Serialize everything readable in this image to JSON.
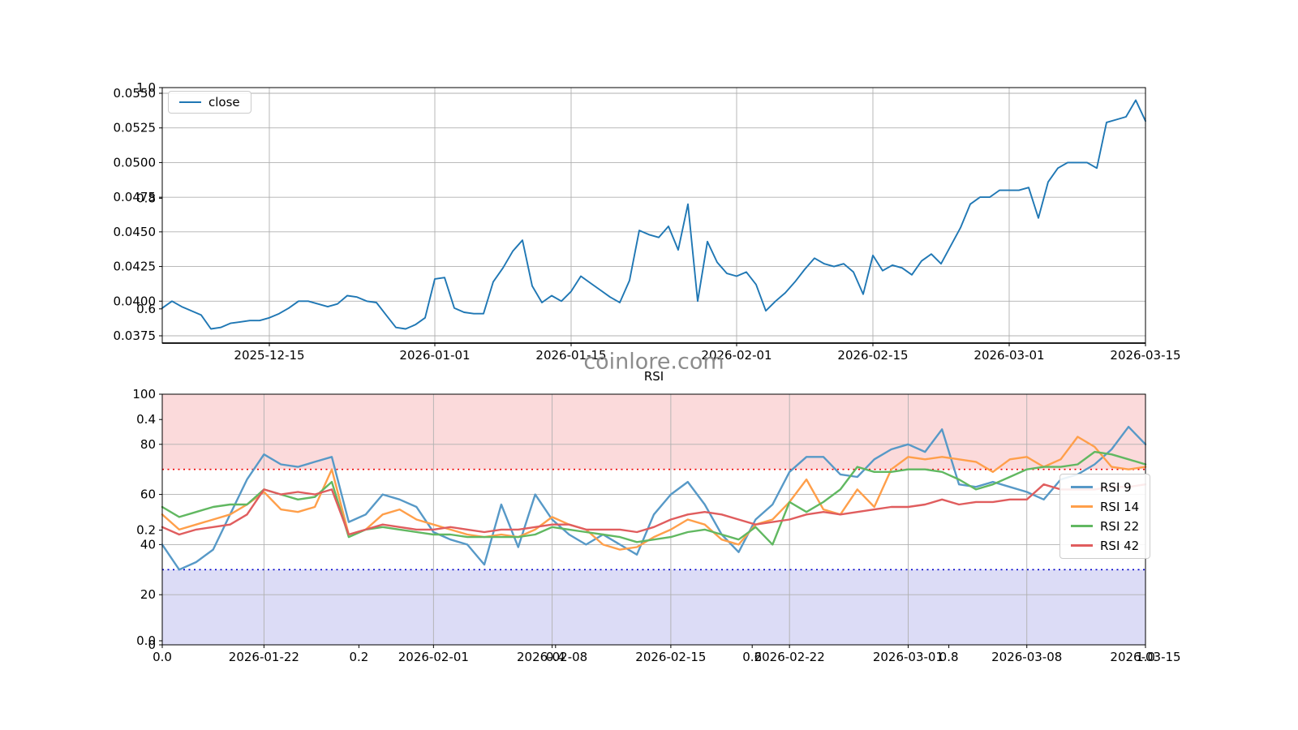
{
  "watermark": {
    "text": "coinlore.com",
    "color": "#8c8c8c"
  },
  "overlay_axis_artifact": {
    "left_tick_labels": [
      "1.0",
      "0.8",
      "0.6",
      "0.4",
      "0.2",
      "0.0"
    ],
    "bottom_tick_labels": [
      "0.0",
      "0.2",
      "0.4",
      "0.6",
      "0.8",
      "1.0"
    ]
  },
  "style": {
    "gridline_color": "#b0b0b0",
    "spine_color": "#000000",
    "tick_label_color": "#000000",
    "tick_font_size": 15
  },
  "chart_data": [
    {
      "type": "line",
      "title": "",
      "xlabel": "",
      "ylabel": "",
      "grid": true,
      "legend_position": "upper left",
      "ylim": [
        0.037,
        0.0554
      ],
      "y_tick_labels": [
        "0.0550",
        "0.0525",
        "0.0500",
        "0.0475",
        "0.0450",
        "0.0425",
        "0.0400",
        "0.0375"
      ],
      "x_tick_labels": [
        "2025-12-15",
        "2026-01-01",
        "2026-01-15",
        "2026-02-01",
        "2026-02-15",
        "2026-03-01",
        "2026-03-15"
      ],
      "series": [
        {
          "name": "close",
          "color": "#1f77b4",
          "x_start": "2025-12-04",
          "x_end": "2026-03-15",
          "frequency": "daily",
          "values": [
            0.0395,
            0.04,
            0.0396,
            0.0393,
            0.039,
            0.038,
            0.0381,
            0.0384,
            0.0385,
            0.0386,
            0.0386,
            0.0388,
            0.0391,
            0.0395,
            0.04,
            0.04,
            0.0398,
            0.0396,
            0.0398,
            0.0404,
            0.0403,
            0.04,
            0.0399,
            0.039,
            0.0381,
            0.038,
            0.0383,
            0.0388,
            0.0416,
            0.0417,
            0.0395,
            0.0392,
            0.0391,
            0.0391,
            0.0414,
            0.0424,
            0.0436,
            0.0444,
            0.0411,
            0.0399,
            0.0404,
            0.04,
            0.0407,
            0.0418,
            0.0413,
            0.0408,
            0.0403,
            0.0399,
            0.0415,
            0.0451,
            0.0448,
            0.0446,
            0.0454,
            0.0437,
            0.047,
            0.04,
            0.0443,
            0.0428,
            0.042,
            0.0418,
            0.0421,
            0.0412,
            0.0393,
            0.04,
            0.0406,
            0.0414,
            0.0423,
            0.0431,
            0.0427,
            0.0425,
            0.0427,
            0.0421,
            0.0405,
            0.0433,
            0.0422,
            0.0426,
            0.0424,
            0.0419,
            0.0429,
            0.0434,
            0.0427,
            0.044,
            0.0453,
            0.047,
            0.0475,
            0.0475,
            0.048,
            0.048,
            0.048,
            0.0482,
            0.046,
            0.0486,
            0.0496,
            0.05,
            0.05,
            0.05,
            0.0496,
            0.0529,
            0.0531,
            0.0533,
            0.0545,
            0.053
          ]
        }
      ]
    },
    {
      "type": "line",
      "title": "RSI",
      "xlabel": "",
      "ylabel": "",
      "grid": true,
      "legend_position": "center right",
      "ylim": [
        0,
        100
      ],
      "y_tick_labels": [
        "100",
        "80",
        "60",
        "40",
        "20",
        "0"
      ],
      "x_tick_labels": [
        "2026-01-22",
        "2026-02-01",
        "2026-02-08",
        "2026-02-15",
        "2026-02-22",
        "2026-03-01",
        "2026-03-08",
        "2026-03-15"
      ],
      "overbought_level": 70,
      "oversold_level": 30,
      "overbought_band_color": "#fbdadb",
      "oversold_band_color": "#dcdcf6",
      "overbought_line_color": "#ee0000",
      "oversold_line_color": "#0000cc",
      "series": [
        {
          "name": "RSI 9",
          "color": "#5799c7",
          "x_start": "2026-01-16",
          "x_end": "2026-03-15",
          "frequency": "daily",
          "values": [
            40,
            30,
            33,
            38,
            52,
            66,
            76,
            72,
            71,
            73,
            75,
            49,
            52,
            60,
            58,
            55,
            45,
            42,
            40,
            32,
            56,
            39,
            60,
            50,
            44,
            40,
            44,
            40,
            36,
            52,
            60,
            65,
            56,
            44,
            37,
            50,
            56,
            69,
            75,
            75,
            68,
            67,
            74,
            78,
            80,
            77,
            86,
            64,
            63,
            65,
            63,
            61,
            58,
            66,
            68,
            72,
            78,
            87,
            80
          ]
        },
        {
          "name": "RSI 14",
          "color": "#ff9f4a",
          "x_start": "2026-01-16",
          "x_end": "2026-03-15",
          "frequency": "daily",
          "values": [
            52,
            46,
            48,
            50,
            52,
            56,
            61,
            54,
            53,
            55,
            70,
            44,
            46,
            52,
            54,
            50,
            48,
            46,
            44,
            43,
            44,
            43,
            46,
            51,
            48,
            46,
            40,
            38,
            39,
            43,
            46,
            50,
            48,
            42,
            40,
            48,
            50,
            57,
            66,
            54,
            52,
            62,
            55,
            70,
            75,
            74,
            75,
            74,
            73,
            69,
            74,
            75,
            71,
            74,
            83,
            79,
            71,
            70,
            71
          ]
        },
        {
          "name": "RSI 22",
          "color": "#61b861",
          "x_start": "2026-01-16",
          "x_end": "2026-03-15",
          "frequency": "daily",
          "values": [
            55,
            51,
            53,
            55,
            56,
            56,
            62,
            60,
            58,
            59,
            65,
            43,
            46,
            47,
            46,
            45,
            44,
            44,
            43,
            43,
            43,
            43,
            44,
            47,
            46,
            45,
            44,
            43,
            41,
            42,
            43,
            45,
            46,
            44,
            42,
            47,
            40,
            57,
            53,
            57,
            62,
            71,
            69,
            69,
            70,
            70,
            69,
            66,
            62,
            64,
            67,
            70,
            71,
            71,
            72,
            77,
            76,
            74,
            72
          ]
        },
        {
          "name": "RSI 42",
          "color": "#e05d5e",
          "x_start": "2026-01-16",
          "x_end": "2026-03-15",
          "frequency": "daily",
          "values": [
            47,
            44,
            46,
            47,
            48,
            52,
            62,
            60,
            61,
            60,
            62,
            44,
            46,
            48,
            47,
            46,
            46,
            47,
            46,
            45,
            46,
            46,
            47,
            48,
            48,
            46,
            46,
            46,
            45,
            47,
            50,
            52,
            53,
            52,
            50,
            48,
            49,
            50,
            52,
            53,
            52,
            53,
            54,
            55,
            55,
            56,
            58,
            56,
            57,
            57,
            58,
            58,
            64,
            62,
            62,
            62,
            63,
            63,
            64
          ]
        }
      ]
    }
  ]
}
